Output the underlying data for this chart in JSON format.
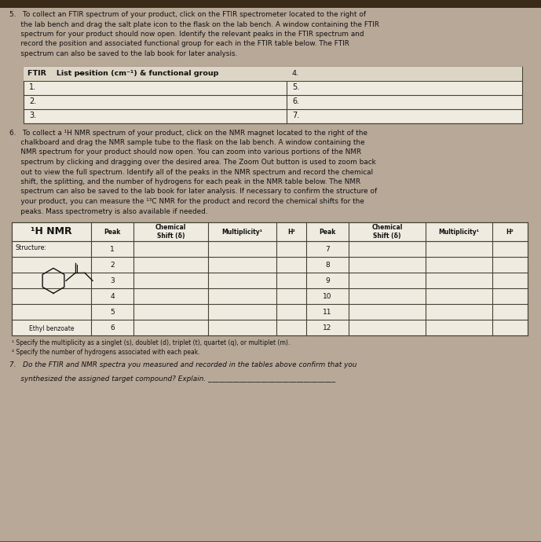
{
  "bg_color": "#b8a898",
  "table_bg": "#d4c8b8",
  "white": "#f0ebe0",
  "text_color": "#111111",
  "figsize": [
    6.89,
    6.9
  ],
  "dpi": 100,
  "top_strip_color": "#3a2a18",
  "footnote1": "¹ Specify the multiplicity as a singlet (s), doublet (d), triplet (t), quartet (q), or multiplet (m).",
  "footnote2": "² Specify the number of hydrogens associated with each peak.",
  "nmr_left_peaks": [
    "1",
    "2",
    "3",
    "4",
    "5",
    "6"
  ],
  "nmr_right_peaks": [
    "7",
    "8",
    "9",
    "10",
    "11",
    "12"
  ]
}
